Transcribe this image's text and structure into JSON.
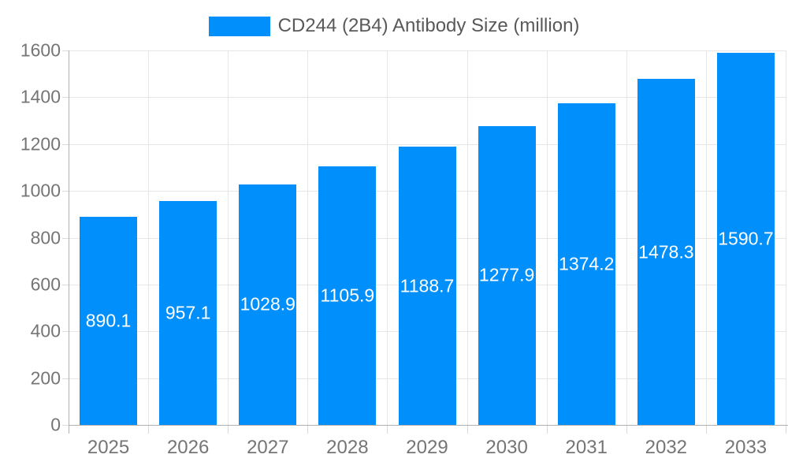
{
  "colors": {
    "bar": "#008FFB",
    "grid": "#e6e6e6",
    "tick": "#d9d9d9",
    "axis": "#b0b0b0",
    "axis_label": "#757575",
    "title_text": "#595959",
    "value_label": "#ffffff",
    "background": "#ffffff"
  },
  "chart_data": {
    "type": "bar",
    "title": "CD244 (2B4) Antibody Size (million)",
    "categories": [
      "2025",
      "2026",
      "2027",
      "2028",
      "2029",
      "2030",
      "2031",
      "2032",
      "2033"
    ],
    "series": [
      {
        "name": "CD244 (2B4) Antibody Size (million)",
        "values": [
          890.1,
          957.1,
          1028.9,
          1105.9,
          1188.7,
          1277.9,
          1374.2,
          1478.3,
          1590.7
        ]
      }
    ],
    "value_label_decimals": 1,
    "xlabel": "",
    "ylabel": "",
    "ylim": [
      0,
      1600
    ],
    "yticks": [
      0,
      200,
      400,
      600,
      800,
      1000,
      1200,
      1400,
      1600
    ],
    "grid": true,
    "value_labels": "inside-center",
    "legend_position": "top-center"
  }
}
